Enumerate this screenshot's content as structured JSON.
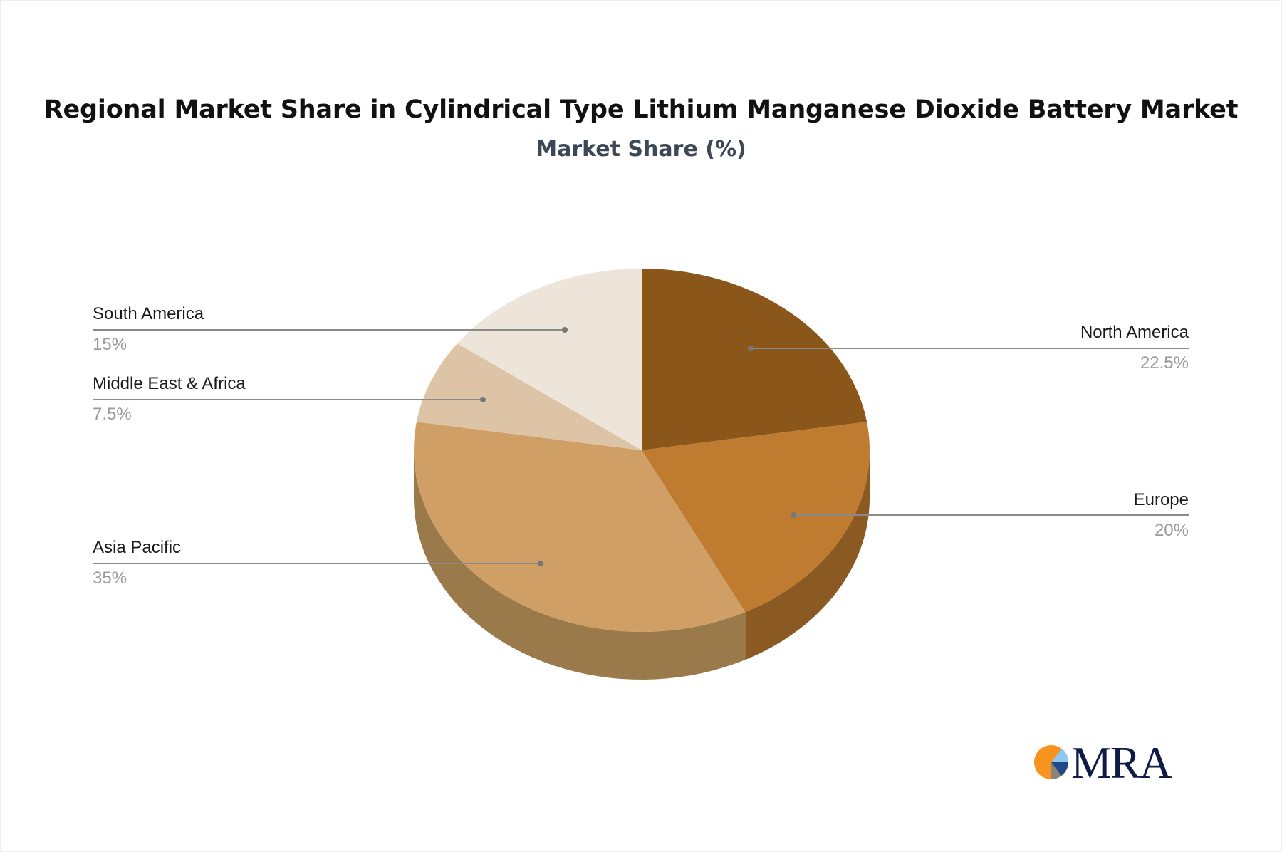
{
  "title": "Regional Market Share in Cylindrical Type Lithium Manganese Dioxide Battery Market",
  "subtitle": "Market Share (%)",
  "logo": {
    "text": "MRA",
    "icon": "pie-logo-icon",
    "colors": [
      "#f7941d",
      "#8ec8f0",
      "#1f4a8a",
      "#8a8378"
    ]
  },
  "labels": {
    "north_america": {
      "name": "North America",
      "value": "22.5%"
    },
    "europe": {
      "name": "Europe",
      "value": "20%"
    },
    "asia_pacific": {
      "name": "Asia Pacific",
      "value": "35%"
    },
    "middle_east_africa": {
      "name": "Middle East & Africa",
      "value": "7.5%"
    },
    "south_america": {
      "name": "South America",
      "value": "15%"
    }
  },
  "chart_data": {
    "type": "pie",
    "title": "Regional Market Share in Cylindrical Type Lithium Manganese Dioxide Battery Market",
    "subtitle": "Market Share (%)",
    "categories": [
      "North America",
      "Europe",
      "Asia Pacific",
      "Middle East & Africa",
      "South America"
    ],
    "values": [
      22.5,
      20,
      35,
      7.5,
      15
    ],
    "colors": [
      "#8b561a",
      "#bf7b30",
      "#d09f66",
      "#ddc4a6",
      "#ede4da"
    ],
    "side_colors": [
      "#8b5a22",
      "#8b5a22",
      "#9a794b",
      "#9a794b",
      "#9a794b"
    ],
    "style": "3d",
    "start_angle_deg": 0,
    "direction": "clockwise",
    "legend": "callout labels"
  }
}
